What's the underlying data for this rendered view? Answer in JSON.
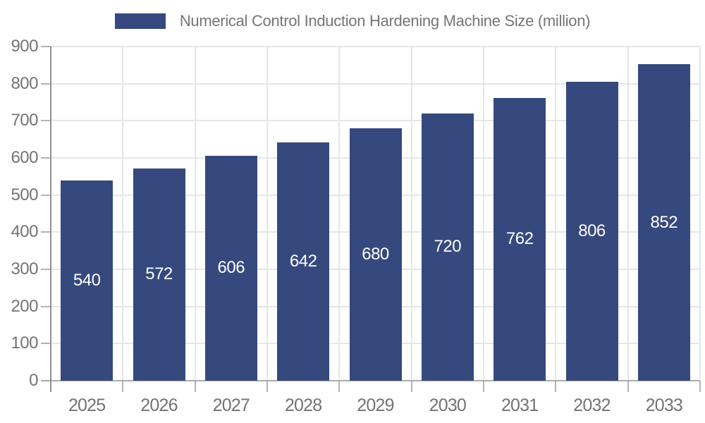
{
  "chart_data": {
    "type": "bar",
    "title": "Numerical Control Induction Hardening Machine Size (million)",
    "categories": [
      "2025",
      "2026",
      "2027",
      "2028",
      "2029",
      "2030",
      "2031",
      "2032",
      "2033"
    ],
    "values": [
      540,
      572,
      606,
      642,
      680,
      720,
      762,
      806,
      852
    ],
    "xlabel": "",
    "ylabel": "",
    "ylim": [
      0,
      900
    ],
    "yticks": [
      0,
      100,
      200,
      300,
      400,
      500,
      600,
      700,
      800,
      900
    ],
    "grid": "on",
    "legend_position": "top-center",
    "value_labels": "inside-center"
  },
  "colors": {
    "bar": "#36497e",
    "legend_text": "#757575",
    "tick_text": "#737373",
    "grid": "#e6e6e6",
    "axis_y": "#8f8f8f",
    "axis_x": "#ababab",
    "tick_mark": "#b3b3b3",
    "value_label": "#ffffff",
    "background": "#ffffff"
  }
}
